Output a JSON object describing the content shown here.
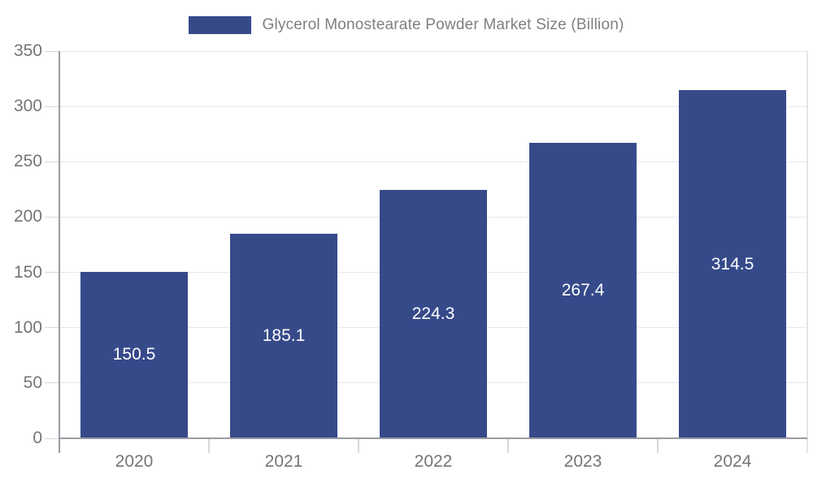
{
  "chart_data": {
    "type": "bar",
    "title": "Glycerol Monostearate Powder Market Size (Billion)",
    "legend_entries": [
      "Glycerol Monostearate Powder Market Size (Billion)"
    ],
    "legend_position": "top-center",
    "categories": [
      "2020",
      "2021",
      "2022",
      "2023",
      "2024"
    ],
    "series": [
      {
        "name": "Glycerol Monostearate Powder Market Size (Billion)",
        "values": [
          150.5,
          185.1,
          224.3,
          267.4,
          314.5
        ]
      }
    ],
    "bar_value_labels": [
      "150.5",
      "185.1",
      "224.3",
      "267.4",
      "314.5"
    ],
    "bar_value_label_position": "inside-center",
    "xlabel": "",
    "ylabel": "",
    "ylim": [
      0,
      350
    ],
    "yticks": [
      0,
      50,
      100,
      150,
      200,
      250,
      300,
      350
    ],
    "grid": true,
    "colors": {
      "bar": "#364a8a",
      "bar_label_text": "#ffffff",
      "grid": "#e7e7ea",
      "axis": "#9b9ba3",
      "minor_tick": "#d6d8de",
      "right_border": "#e4e4e8",
      "tick_label": "#757575",
      "legend_text": "#7f7f7f",
      "background": "#ffffff"
    }
  }
}
